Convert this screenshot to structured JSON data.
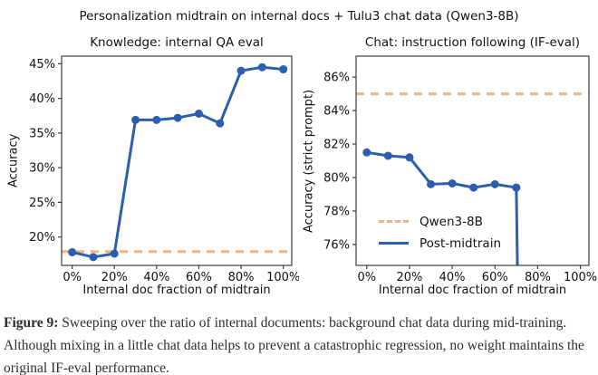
{
  "figure": {
    "title": "Personalization midtrain on internal docs + Tulu3 chat data (Qwen3-8B)"
  },
  "caption": {
    "label": "Figure 9:",
    "text": " Sweeping over the ratio of internal documents: background chat data during mid-training. Although mixing in a little chat data helps to prevent a catastrophic regression, no weight maintains the original IF-eval performance."
  },
  "colors": {
    "series_blue": "#2b5fad",
    "baseline_orange": "#f2b284",
    "axis": "#3c3c3c",
    "text": "#111111"
  },
  "chart_data": [
    {
      "type": "line",
      "title": "Knowledge: internal QA eval",
      "xlabel": "Internal doc fraction of midtrain",
      "ylabel": "Accuracy",
      "xlim": [
        -5,
        104
      ],
      "ylim": [
        15.9,
        46.1
      ],
      "xticks": [
        0,
        20,
        40,
        60,
        80,
        100
      ],
      "yticks": [
        20,
        25,
        30,
        35,
        40,
        45
      ],
      "tick_suffix": "%",
      "grid": false,
      "baseline": {
        "name": "Qwen3-8B",
        "value": 17.9,
        "color": "#f2b284",
        "style": "dashed"
      },
      "series": [
        {
          "name": "Post-midtrain",
          "color": "#2b5fad",
          "marker": true,
          "x": [
            0,
            10,
            20,
            30,
            40,
            50,
            60,
            70,
            80,
            90,
            100
          ],
          "y": [
            17.8,
            17.1,
            17.6,
            36.9,
            36.9,
            37.2,
            37.8,
            36.4,
            44.0,
            44.5,
            44.2
          ]
        }
      ]
    },
    {
      "type": "line",
      "title": "Chat: instruction following (IF-eval)",
      "xlabel": "Internal doc fraction of midtrain",
      "ylabel": "Accuracy (strict prompt)",
      "xlim": [
        -5,
        104
      ],
      "ylim": [
        74.75,
        87.25
      ],
      "xticks": [
        0,
        20,
        40,
        60,
        80,
        100
      ],
      "yticks": [
        76,
        78,
        80,
        82,
        84,
        86
      ],
      "tick_suffix": "%",
      "grid": false,
      "baseline": {
        "name": "Qwen3-8B",
        "value": 85.0,
        "color": "#f2b284",
        "style": "dashed"
      },
      "series": [
        {
          "name": "Post-midtrain",
          "color": "#2b5fad",
          "marker": true,
          "x": [
            0,
            10,
            20,
            30,
            40,
            50,
            60,
            70
          ],
          "y": [
            81.5,
            81.3,
            81.2,
            79.6,
            79.65,
            79.4,
            79.6,
            79.4
          ],
          "exit_segment": {
            "note": "line plunges below bottom axis just after x=70%",
            "to_x": 70.6,
            "to_y": 74.0
          }
        }
      ],
      "legend": {
        "position": "lower left",
        "items": [
          {
            "label": "Qwen3-8B",
            "style": "dashed",
            "color": "#f2b284"
          },
          {
            "label": "Post-midtrain",
            "style": "solid",
            "color": "#2b5fad"
          }
        ]
      }
    }
  ]
}
